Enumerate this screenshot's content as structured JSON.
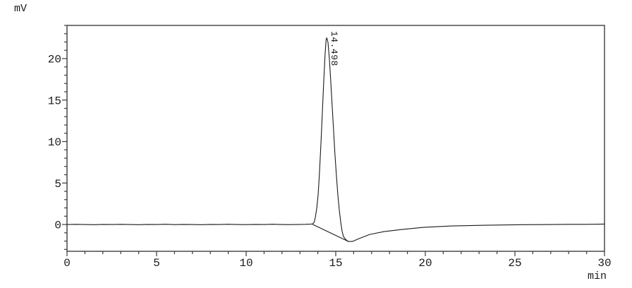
{
  "units": {
    "y": "mV",
    "x": "min"
  },
  "chart_data": {
    "type": "line",
    "title": "",
    "xlabel": "min",
    "ylabel": "mV",
    "xlim": [
      0,
      30
    ],
    "ylim": [
      -3.23,
      24.0
    ],
    "x_major_ticks": [
      0,
      5,
      10,
      15,
      20,
      25,
      30
    ],
    "x_minor_tick_step": 1,
    "y_major_ticks": [
      0,
      5,
      10,
      15,
      20
    ],
    "y_minor_tick_step": 1,
    "grid": false,
    "legend_position": "none",
    "line_color": "#1a1a1a",
    "axis_color": "#4a4a4a",
    "tick_color": "#3a3a3a",
    "background_color": "#ffffff",
    "peaks": [
      {
        "retention_time": 14.498,
        "label": "14.498",
        "apex_mv": 22.5
      }
    ],
    "series": [
      {
        "name": "signal",
        "points": [
          [
            0,
            0
          ],
          [
            0.5,
            0.02
          ],
          [
            1,
            0
          ],
          [
            1.5,
            -0.02
          ],
          [
            2,
            0.01
          ],
          [
            2.5,
            0
          ],
          [
            3,
            0.02
          ],
          [
            3.5,
            0
          ],
          [
            4,
            -0.02
          ],
          [
            4.5,
            0.01
          ],
          [
            5,
            0
          ],
          [
            5.5,
            0.03
          ],
          [
            6,
            -0.01
          ],
          [
            6.5,
            0.01
          ],
          [
            7,
            0
          ],
          [
            7.5,
            -0.02
          ],
          [
            8,
            0.01
          ],
          [
            8.5,
            0
          ],
          [
            9,
            0.03
          ],
          [
            9.5,
            0
          ],
          [
            10,
            -0.01
          ],
          [
            10.5,
            0.01
          ],
          [
            11,
            0
          ],
          [
            11.5,
            0.03
          ],
          [
            12,
            0
          ],
          [
            12.5,
            -0.01
          ],
          [
            13,
            0.01
          ],
          [
            13.3,
            0.02
          ],
          [
            13.5,
            0.04
          ],
          [
            13.62,
            0.05
          ],
          [
            13.72,
            0.08
          ],
          [
            13.8,
            0.3
          ],
          [
            13.86,
            0.85
          ],
          [
            13.94,
            1.96
          ],
          [
            14.02,
            3.66
          ],
          [
            14.09,
            6.2
          ],
          [
            14.17,
            9.6
          ],
          [
            14.25,
            13.4
          ],
          [
            14.33,
            17.3
          ],
          [
            14.41,
            20.7
          ],
          [
            14.46,
            22.2
          ],
          [
            14.49,
            22.5
          ],
          [
            14.53,
            22.3
          ],
          [
            14.57,
            21.9
          ],
          [
            14.65,
            19.8
          ],
          [
            14.72,
            17.3
          ],
          [
            14.8,
            14.3
          ],
          [
            14.88,
            11.3
          ],
          [
            14.96,
            8.3
          ],
          [
            15.04,
            5.8
          ],
          [
            15.12,
            3.5
          ],
          [
            15.2,
            1.7
          ],
          [
            15.28,
            0.26
          ],
          [
            15.35,
            -0.77
          ],
          [
            15.43,
            -1.45
          ],
          [
            15.55,
            -1.8
          ],
          [
            15.7,
            -2.04
          ],
          [
            15.94,
            -2.04
          ],
          [
            16.3,
            -1.7
          ],
          [
            16.9,
            -1.2
          ],
          [
            17.7,
            -0.85
          ],
          [
            18.7,
            -0.6
          ],
          [
            19.9,
            -0.34
          ],
          [
            21.5,
            -0.17
          ],
          [
            23.4,
            -0.09
          ],
          [
            25.4,
            -0.02
          ],
          [
            27,
            0
          ],
          [
            28,
            0.02
          ],
          [
            29,
            0.02
          ],
          [
            30,
            0.05
          ]
        ]
      },
      {
        "name": "peak-baseline",
        "points": [
          [
            13.72,
            0.0
          ],
          [
            15.7,
            -2.04
          ]
        ]
      }
    ]
  }
}
